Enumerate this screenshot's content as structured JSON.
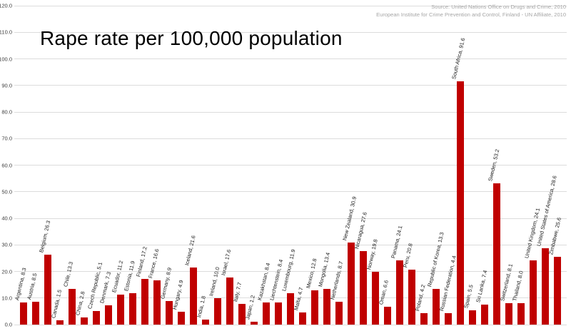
{
  "chart_data": {
    "type": "bar",
    "title": "Rape rate per 100,000 population",
    "source_lines": [
      "Source: United Nations Office on Drugs and Crime, 2010",
      "European Institute for Crime Prevention and Control, Finland - UN Affiliate, 2010"
    ],
    "categories": [
      "Argentina",
      "Austria",
      "Belgium",
      "Canada",
      "Chile",
      "China",
      "Czech Republic",
      "Denmark",
      "Ecuador",
      "Estonia",
      "Finland",
      "France",
      "Germany",
      "Hungary",
      "Iceland",
      "India",
      "Ireland",
      "Israel",
      "Italy",
      "Japan",
      "Kazakhstan",
      "Liechtenstein",
      "Luxembourg",
      "Malta",
      "Mexico",
      "Mongolia",
      "Netherlands",
      "New Zealand",
      "Nicaragua",
      "Norway",
      "Oman",
      "Panama",
      "Peru",
      "Poland",
      "Republic of Korea",
      "Russian Federation",
      "South Africa",
      "Spain",
      "Sri Lanka",
      "Sweden",
      "Switzerland",
      "Thailand",
      "United Kingdom",
      "United States of America",
      "Zimbabwe"
    ],
    "values": [
      8.3,
      8.5,
      26.3,
      1.5,
      13.3,
      2.8,
      5.1,
      7.3,
      11.2,
      11.9,
      17.2,
      16.6,
      8.9,
      4.9,
      21.6,
      1.8,
      10.0,
      17.6,
      7.7,
      1.2,
      8.4,
      8.4,
      11.9,
      4.7,
      12.8,
      13.4,
      8.7,
      30.9,
      27.6,
      19.8,
      6.6,
      24.1,
      20.8,
      4.2,
      13.3,
      4.4,
      91.6,
      5.5,
      7.4,
      53.2,
      8.1,
      8.0,
      24.1,
      28.6,
      25.6
    ],
    "xlabel": "",
    "ylabel": "",
    "ylim": [
      0,
      120
    ],
    "ytick_step": 10,
    "ytick_labels": [
      "0.0",
      "10.0",
      "20.0",
      "30.0",
      "40.0",
      "50.0",
      "60.0",
      "70.0",
      "80.0",
      "90.0",
      "100.0",
      "110.0",
      "120.0"
    ],
    "grid": true,
    "legend": "none",
    "bar_color": "#C00000",
    "gridline_color": "#dcdcdc",
    "label_format": "{category}, {value}"
  }
}
